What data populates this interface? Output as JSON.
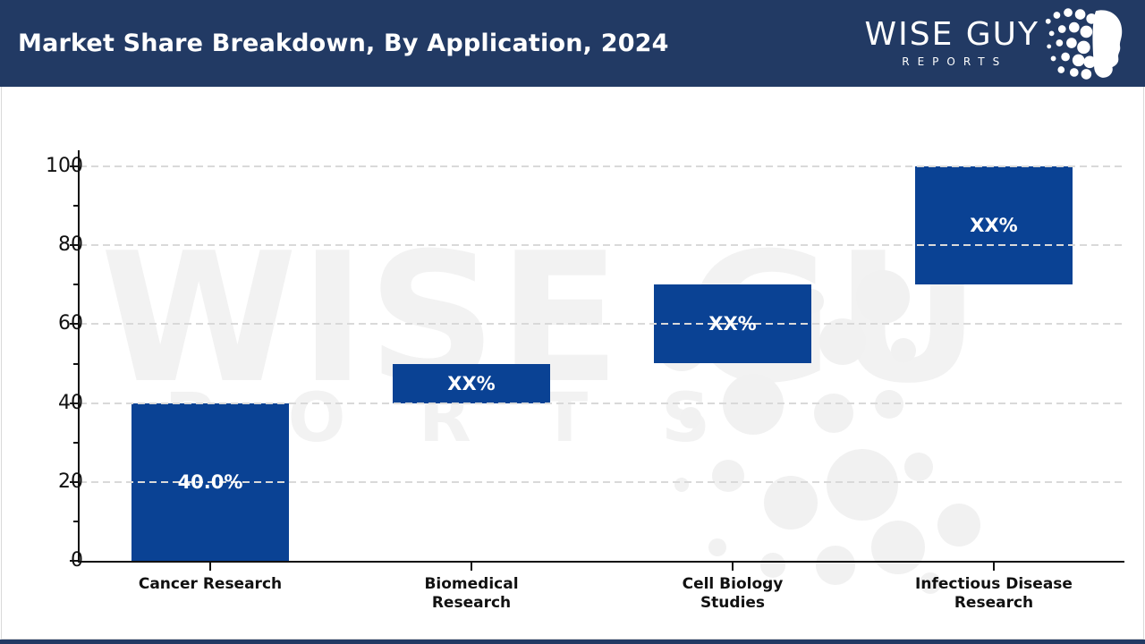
{
  "header": {
    "title": "Market Share Breakdown, By Application, 2024",
    "brand": {
      "name": "WISE GUY",
      "subtitle": "REPORTS"
    },
    "background_color": "#223a64"
  },
  "watermark": {
    "line1": "WISE GU",
    "line2": "PORTS"
  },
  "chart_data": {
    "type": "bar",
    "subtype": "waterfall",
    "title": "Market Share Breakdown, By Application, 2024",
    "categories": [
      "Cancer Research",
      "Biomedical\nResearch",
      "Cell Biology\nStudies",
      "Infectious Disease\nResearch"
    ],
    "segments": [
      {
        "category": "Cancer Research",
        "start": 0,
        "end": 40,
        "value_label": "40.0%"
      },
      {
        "category": "Biomedical Research",
        "start": 40,
        "end": 50,
        "value_label": "XX%"
      },
      {
        "category": "Cell Biology Studies",
        "start": 50,
        "end": 70,
        "value_label": "XX%"
      },
      {
        "category": "Infectious Disease Research",
        "start": 70,
        "end": 100,
        "value_label": "XX%"
      }
    ],
    "yticks": [
      0,
      20,
      40,
      60,
      80,
      100
    ],
    "minor_yticks": [
      10,
      30,
      50,
      70,
      90
    ],
    "ylim": [
      0,
      104
    ],
    "xlabel": "",
    "ylabel": "",
    "legend": "none",
    "grid": "horizontal-dashed-drawn-over-bars",
    "bar_color": "#0a4294",
    "value_label_color": "#ffffff",
    "axis_color": "#111111",
    "gridline_color": "#d9d9d9",
    "watermark_color": "#f2f2f2"
  }
}
